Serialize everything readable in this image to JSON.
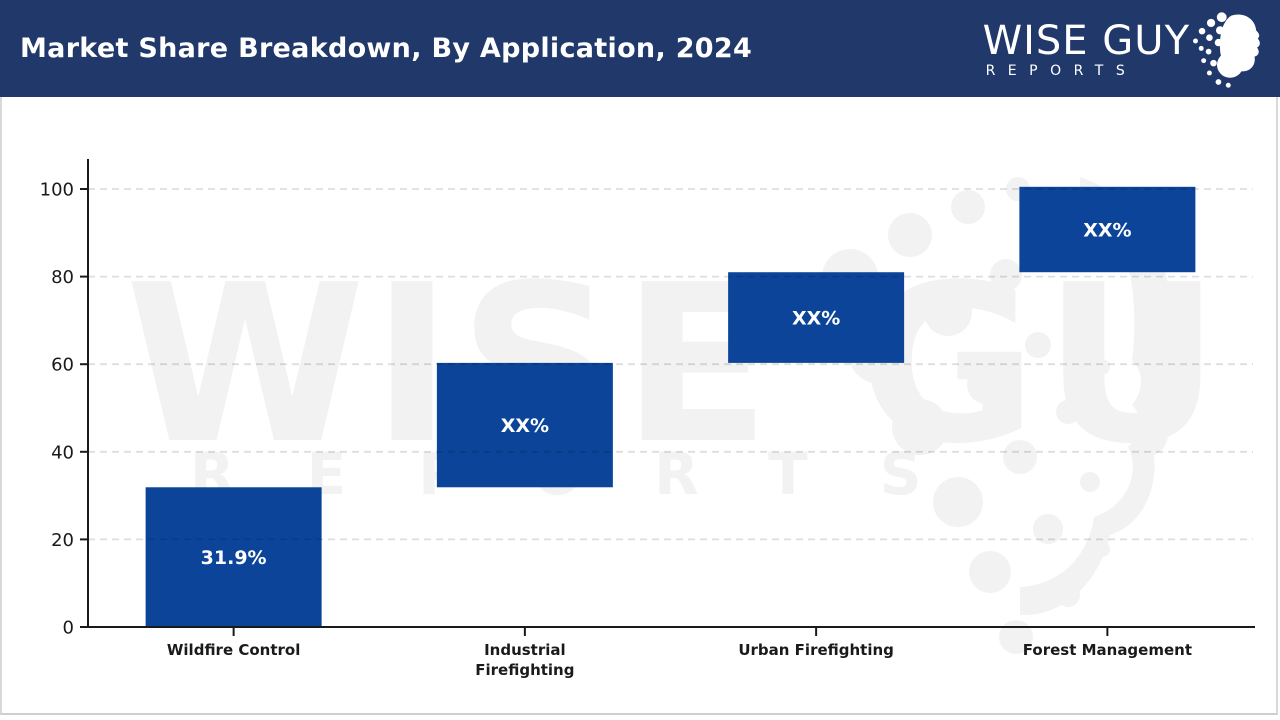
{
  "header": {
    "title": "Market Share Breakdown, By Application, 2024",
    "logo": {
      "wordmark": "WISE GUY",
      "subtitle": "REPORTS"
    }
  },
  "watermark": {
    "line1": "WISE GU",
    "line2": "REPORTS"
  },
  "colors": {
    "header_bg": "#21386b",
    "bar": "#0b4499",
    "bar_label": "#ffffff",
    "axis": "#1a1a1a",
    "gridline": "rgba(0,0,0,0.13)",
    "watermark": "#f2f2f2",
    "frame_border": "#d9d9d9"
  },
  "chart_data": {
    "type": "bar",
    "subtype": "waterfall",
    "title": "Market Share Breakdown, By Application, 2024",
    "categories": [
      "Wildfire Control",
      "Industrial\nFirefighting",
      "Urban Firefighting",
      "Forest Management"
    ],
    "series": [
      {
        "name": "Market Share",
        "segments": [
          {
            "category": "Wildfire Control",
            "start": 0,
            "end": 31.9,
            "label": "31.9%"
          },
          {
            "category": "Industrial Firefighting",
            "start": 31.9,
            "end": 60.3,
            "label": "XX%"
          },
          {
            "category": "Urban Firefighting",
            "start": 60.3,
            "end": 81.0,
            "label": "XX%"
          },
          {
            "category": "Forest Management",
            "start": 81.0,
            "end": 100.5,
            "label": "XX%"
          }
        ]
      }
    ],
    "xlabel": "",
    "ylabel": "",
    "ylim": [
      0,
      107
    ],
    "yticks": [
      0,
      20,
      40,
      60,
      80,
      100
    ],
    "grid": {
      "axis": "y",
      "style": "dashed",
      "over_bars": true
    },
    "legend": false
  }
}
